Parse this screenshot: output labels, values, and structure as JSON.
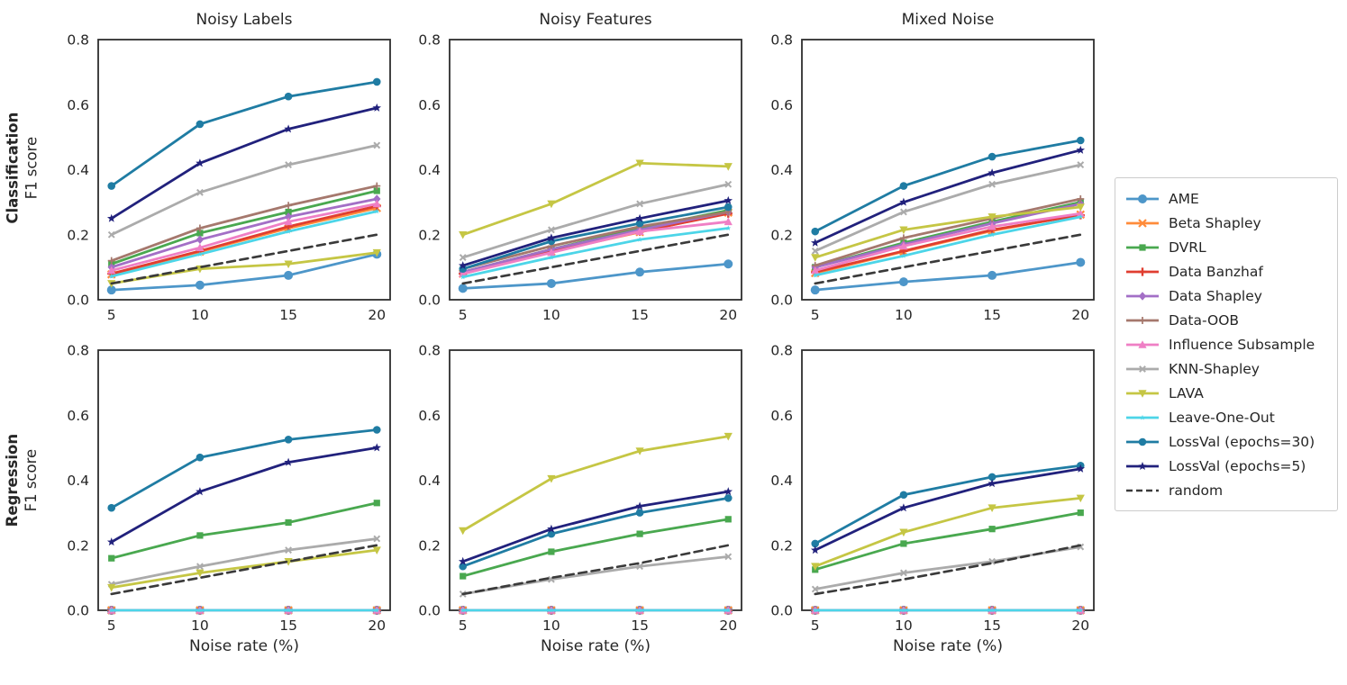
{
  "figure": {
    "row_labels": [
      {
        "bold": "Classification",
        "normal": "F1 score"
      },
      {
        "bold": "Regression",
        "normal": "F1 score"
      }
    ],
    "col_titles": [
      "Noisy Labels",
      "Noisy Features",
      "Mixed Noise"
    ],
    "xlabel": "Noise rate (%)",
    "x_ticks": [
      "5",
      "10",
      "15",
      "20"
    ],
    "y_ticks": [
      "0.0",
      "0.2",
      "0.4",
      "0.6",
      "0.8"
    ],
    "axis_color": "#2e2e2e",
    "background": "#ffffff"
  },
  "legend": {
    "entries": [
      {
        "label": "AME",
        "color": "#4d96c9",
        "marker": "circle",
        "dashed": false
      },
      {
        "label": "Beta Shapley",
        "color": "#ff8b3a",
        "marker": "x",
        "dashed": false
      },
      {
        "label": "DVRL",
        "color": "#49a84f",
        "marker": "square",
        "dashed": false
      },
      {
        "label": "Data Banzhaf",
        "color": "#e03e30",
        "marker": "plus",
        "dashed": false
      },
      {
        "label": "Data Shapley",
        "color": "#a36fc6",
        "marker": "diamond",
        "dashed": false
      },
      {
        "label": "Data-OOB",
        "color": "#a5786d",
        "marker": "thin-plus",
        "dashed": false
      },
      {
        "label": "Influence Subsample",
        "color": "#ef7fc5",
        "marker": "triangle-up",
        "dashed": false
      },
      {
        "label": "KNN-Shapley",
        "color": "#ababab",
        "marker": "x-small",
        "dashed": false
      },
      {
        "label": "LAVA",
        "color": "#c5c644",
        "marker": "triangle-down",
        "dashed": false
      },
      {
        "label": "Leave-One-Out",
        "color": "#4cd5e8",
        "marker": "star-small",
        "dashed": false
      },
      {
        "label": "LossVal (epochs=30)",
        "color": "#1f7ca3",
        "marker": "circle-small",
        "dashed": false
      },
      {
        "label": "LossVal (epochs=5)",
        "color": "#21217c",
        "marker": "star",
        "dashed": false
      },
      {
        "label": "random",
        "color": "#3a3a3a",
        "marker": "none",
        "dashed": true
      }
    ]
  },
  "chart_data": [
    {
      "type": "line",
      "row": "Classification",
      "title": "Noisy Labels",
      "ylabel": "F1 score",
      "xlabel": "Noise rate (%)",
      "x": [
        5,
        10,
        15,
        20
      ],
      "xlim": [
        4.25,
        20.75
      ],
      "ylim": [
        0,
        0.8
      ],
      "grid": false,
      "series": [
        {
          "name": "AME",
          "values": [
            0.03,
            0.045,
            0.075,
            0.14
          ]
        },
        {
          "name": "Beta Shapley",
          "values": [
            0.078,
            0.148,
            0.22,
            0.282
          ]
        },
        {
          "name": "DVRL",
          "values": [
            0.11,
            0.205,
            0.27,
            0.335
          ]
        },
        {
          "name": "Data Banzhaf",
          "values": [
            0.08,
            0.15,
            0.225,
            0.288
          ]
        },
        {
          "name": "Data Shapley",
          "values": [
            0.1,
            0.185,
            0.255,
            0.31
          ]
        },
        {
          "name": "Data-OOB",
          "values": [
            0.12,
            0.22,
            0.29,
            0.35
          ]
        },
        {
          "name": "Influence Subsample",
          "values": [
            0.09,
            0.16,
            0.24,
            0.295
          ]
        },
        {
          "name": "KNN-Shapley",
          "values": [
            0.2,
            0.33,
            0.415,
            0.475
          ]
        },
        {
          "name": "LAVA",
          "values": [
            0.05,
            0.095,
            0.11,
            0.145
          ]
        },
        {
          "name": "Leave-One-Out",
          "values": [
            0.072,
            0.14,
            0.21,
            0.272
          ]
        },
        {
          "name": "LossVal (epochs=30)",
          "values": [
            0.35,
            0.54,
            0.625,
            0.67
          ]
        },
        {
          "name": "LossVal (epochs=5)",
          "values": [
            0.25,
            0.42,
            0.525,
            0.59
          ]
        },
        {
          "name": "random",
          "values": [
            0.05,
            0.1,
            0.15,
            0.2
          ]
        }
      ]
    },
    {
      "type": "line",
      "row": "Classification",
      "title": "Noisy Features",
      "ylabel": "F1 score",
      "xlabel": "Noise rate (%)",
      "x": [
        5,
        10,
        15,
        20
      ],
      "xlim": [
        4.25,
        20.75
      ],
      "ylim": [
        0,
        0.8
      ],
      "grid": false,
      "series": [
        {
          "name": "AME",
          "values": [
            0.035,
            0.05,
            0.085,
            0.11
          ]
        },
        {
          "name": "Beta Shapley",
          "values": [
            0.08,
            0.148,
            0.208,
            0.268
          ]
        },
        {
          "name": "DVRL",
          "values": [
            0.085,
            0.155,
            0.22,
            0.275
          ]
        },
        {
          "name": "Data Banzhaf",
          "values": [
            0.08,
            0.15,
            0.21,
            0.265
          ]
        },
        {
          "name": "Data Shapley",
          "values": [
            0.085,
            0.155,
            0.215,
            0.27
          ]
        },
        {
          "name": "Data-OOB",
          "values": [
            0.095,
            0.165,
            0.225,
            0.27
          ]
        },
        {
          "name": "Influence Subsample",
          "values": [
            0.08,
            0.145,
            0.21,
            0.24
          ]
        },
        {
          "name": "KNN-Shapley",
          "values": [
            0.13,
            0.215,
            0.295,
            0.355
          ]
        },
        {
          "name": "LAVA",
          "values": [
            0.2,
            0.295,
            0.42,
            0.41
          ]
        },
        {
          "name": "Leave-One-Out",
          "values": [
            0.07,
            0.13,
            0.185,
            0.22
          ]
        },
        {
          "name": "LossVal (epochs=30)",
          "values": [
            0.095,
            0.18,
            0.235,
            0.285
          ]
        },
        {
          "name": "LossVal (epochs=5)",
          "values": [
            0.105,
            0.19,
            0.25,
            0.305
          ]
        },
        {
          "name": "random",
          "values": [
            0.05,
            0.1,
            0.15,
            0.2
          ]
        }
      ]
    },
    {
      "type": "line",
      "row": "Classification",
      "title": "Mixed Noise",
      "ylabel": "F1 score",
      "xlabel": "Noise rate (%)",
      "x": [
        5,
        10,
        15,
        20
      ],
      "xlim": [
        4.25,
        20.75
      ],
      "ylim": [
        0,
        0.8
      ],
      "grid": false,
      "series": [
        {
          "name": "AME",
          "values": [
            0.03,
            0.055,
            0.075,
            0.115
          ]
        },
        {
          "name": "Beta Shapley",
          "values": [
            0.082,
            0.148,
            0.212,
            0.262
          ]
        },
        {
          "name": "DVRL",
          "values": [
            0.1,
            0.175,
            0.24,
            0.3
          ]
        },
        {
          "name": "Data Banzhaf",
          "values": [
            0.085,
            0.15,
            0.215,
            0.26
          ]
        },
        {
          "name": "Data Shapley",
          "values": [
            0.1,
            0.17,
            0.235,
            0.295
          ]
        },
        {
          "name": "Data-OOB",
          "values": [
            0.105,
            0.19,
            0.25,
            0.31
          ]
        },
        {
          "name": "Influence Subsample",
          "values": [
            0.09,
            0.165,
            0.225,
            0.265
          ]
        },
        {
          "name": "KNN-Shapley",
          "values": [
            0.15,
            0.27,
            0.355,
            0.415
          ]
        },
        {
          "name": "LAVA",
          "values": [
            0.13,
            0.215,
            0.255,
            0.285
          ]
        },
        {
          "name": "Leave-One-Out",
          "values": [
            0.075,
            0.135,
            0.2,
            0.255
          ]
        },
        {
          "name": "LossVal (epochs=30)",
          "values": [
            0.21,
            0.35,
            0.44,
            0.49
          ]
        },
        {
          "name": "LossVal (epochs=5)",
          "values": [
            0.175,
            0.3,
            0.39,
            0.46
          ]
        },
        {
          "name": "random",
          "values": [
            0.05,
            0.1,
            0.15,
            0.2
          ]
        }
      ]
    },
    {
      "type": "line",
      "row": "Regression",
      "title": "Noisy Labels",
      "ylabel": "F1 score",
      "xlabel": "Noise rate (%)",
      "x": [
        5,
        10,
        15,
        20
      ],
      "xlim": [
        4.25,
        20.75
      ],
      "ylim": [
        0,
        0.8
      ],
      "grid": false,
      "series": [
        {
          "name": "AME",
          "values": [
            0.0,
            0.0,
            0.0,
            0.0
          ]
        },
        {
          "name": "Beta Shapley",
          "values": [
            0.0,
            0.0,
            0.0,
            0.0
          ]
        },
        {
          "name": "DVRL",
          "values": [
            0.16,
            0.23,
            0.27,
            0.33
          ]
        },
        {
          "name": "Data Banzhaf",
          "values": [
            0.0,
            0.0,
            0.0,
            0.0
          ]
        },
        {
          "name": "Data Shapley",
          "values": [
            0.0,
            0.0,
            0.0,
            0.0
          ]
        },
        {
          "name": "Data-OOB",
          "values": [
            0.0,
            0.0,
            0.0,
            0.0
          ]
        },
        {
          "name": "Influence Subsample",
          "values": [
            0.0,
            0.0,
            0.0,
            0.0
          ]
        },
        {
          "name": "KNN-Shapley",
          "values": [
            0.08,
            0.135,
            0.185,
            0.22
          ]
        },
        {
          "name": "LAVA",
          "values": [
            0.07,
            0.115,
            0.15,
            0.185
          ]
        },
        {
          "name": "Leave-One-Out",
          "values": [
            0.0,
            0.0,
            0.0,
            0.0
          ]
        },
        {
          "name": "LossVal (epochs=30)",
          "values": [
            0.315,
            0.47,
            0.525,
            0.555
          ]
        },
        {
          "name": "LossVal (epochs=5)",
          "values": [
            0.21,
            0.365,
            0.455,
            0.5
          ]
        },
        {
          "name": "random",
          "values": [
            0.05,
            0.1,
            0.15,
            0.2
          ]
        }
      ]
    },
    {
      "type": "line",
      "row": "Regression",
      "title": "Noisy Features",
      "ylabel": "F1 score",
      "xlabel": "Noise rate (%)",
      "x": [
        5,
        10,
        15,
        20
      ],
      "xlim": [
        4.25,
        20.75
      ],
      "ylim": [
        0,
        0.8
      ],
      "grid": false,
      "series": [
        {
          "name": "AME",
          "values": [
            0.0,
            0.0,
            0.0,
            0.0
          ]
        },
        {
          "name": "Beta Shapley",
          "values": [
            0.0,
            0.0,
            0.0,
            0.0
          ]
        },
        {
          "name": "DVRL",
          "values": [
            0.105,
            0.18,
            0.235,
            0.28
          ]
        },
        {
          "name": "Data Banzhaf",
          "values": [
            0.0,
            0.0,
            0.0,
            0.0
          ]
        },
        {
          "name": "Data Shapley",
          "values": [
            0.0,
            0.0,
            0.0,
            0.0
          ]
        },
        {
          "name": "Data-OOB",
          "values": [
            0.0,
            0.0,
            0.0,
            0.0
          ]
        },
        {
          "name": "Influence Subsample",
          "values": [
            0.0,
            0.0,
            0.0,
            0.0
          ]
        },
        {
          "name": "KNN-Shapley",
          "values": [
            0.05,
            0.095,
            0.135,
            0.165
          ]
        },
        {
          "name": "LAVA",
          "values": [
            0.245,
            0.405,
            0.49,
            0.535
          ]
        },
        {
          "name": "Leave-One-Out",
          "values": [
            0.0,
            0.0,
            0.0,
            0.0
          ]
        },
        {
          "name": "LossVal (epochs=30)",
          "values": [
            0.135,
            0.235,
            0.3,
            0.345
          ]
        },
        {
          "name": "LossVal (epochs=5)",
          "values": [
            0.15,
            0.25,
            0.32,
            0.365
          ]
        },
        {
          "name": "random",
          "values": [
            0.05,
            0.1,
            0.145,
            0.2
          ]
        }
      ]
    },
    {
      "type": "line",
      "row": "Regression",
      "title": "Mixed Noise",
      "ylabel": "F1 score",
      "xlabel": "Noise rate (%)",
      "x": [
        5,
        10,
        15,
        20
      ],
      "xlim": [
        4.25,
        20.75
      ],
      "ylim": [
        0,
        0.8
      ],
      "grid": false,
      "series": [
        {
          "name": "AME",
          "values": [
            0.0,
            0.0,
            0.0,
            0.0
          ]
        },
        {
          "name": "Beta Shapley",
          "values": [
            0.0,
            0.0,
            0.0,
            0.0
          ]
        },
        {
          "name": "DVRL",
          "values": [
            0.125,
            0.205,
            0.25,
            0.3
          ]
        },
        {
          "name": "Data Banzhaf",
          "values": [
            0.0,
            0.0,
            0.0,
            0.0
          ]
        },
        {
          "name": "Data Shapley",
          "values": [
            0.0,
            0.0,
            0.0,
            0.0
          ]
        },
        {
          "name": "Data-OOB",
          "values": [
            0.0,
            0.0,
            0.0,
            0.0
          ]
        },
        {
          "name": "Influence Subsample",
          "values": [
            0.0,
            0.0,
            0.0,
            0.0
          ]
        },
        {
          "name": "KNN-Shapley",
          "values": [
            0.065,
            0.115,
            0.15,
            0.195
          ]
        },
        {
          "name": "LAVA",
          "values": [
            0.135,
            0.24,
            0.315,
            0.345
          ]
        },
        {
          "name": "Leave-One-Out",
          "values": [
            0.0,
            0.0,
            0.0,
            0.0
          ]
        },
        {
          "name": "LossVal (epochs=30)",
          "values": [
            0.205,
            0.355,
            0.41,
            0.445
          ]
        },
        {
          "name": "LossVal (epochs=5)",
          "values": [
            0.185,
            0.315,
            0.39,
            0.435
          ]
        },
        {
          "name": "random",
          "values": [
            0.05,
            0.095,
            0.145,
            0.2
          ]
        }
      ]
    }
  ]
}
